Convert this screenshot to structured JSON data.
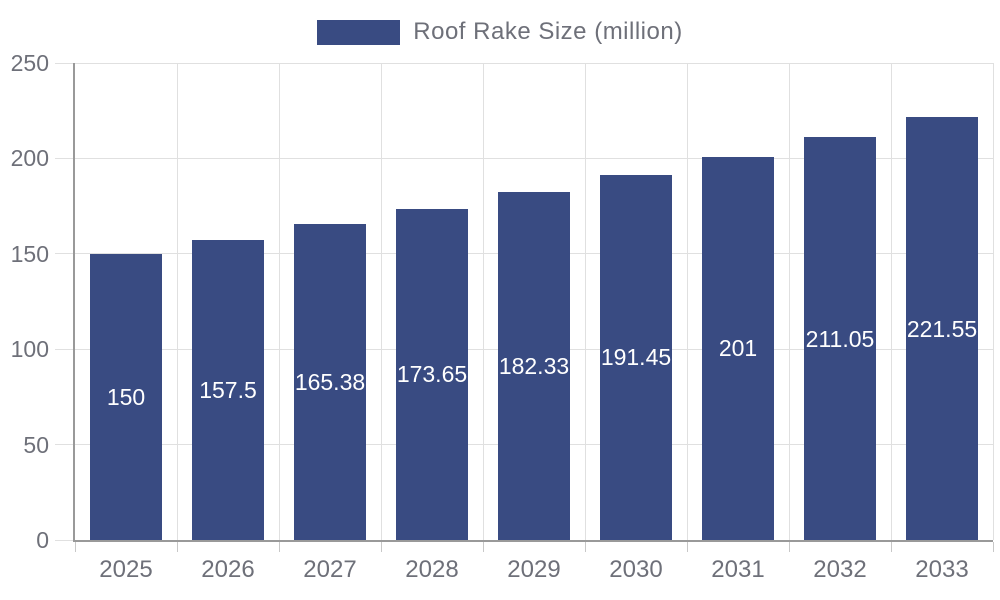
{
  "legend": {
    "label": "Roof Rake Size (million)"
  },
  "chart_data": {
    "type": "bar",
    "title": "Roof Rake Size (million)",
    "categories": [
      "2025",
      "2026",
      "2027",
      "2028",
      "2029",
      "2030",
      "2031",
      "2032",
      "2033"
    ],
    "series": [
      {
        "name": "Roof Rake Size (million)",
        "values": [
          150,
          157.5,
          165.38,
          173.65,
          182.33,
          191.45,
          201,
          211.05,
          221.55
        ],
        "labels": [
          "150",
          "157.5",
          "165.38",
          "173.65",
          "182.33",
          "191.45",
          "201",
          "211.05",
          "221.55"
        ]
      }
    ],
    "xlabel": "",
    "ylabel": "",
    "ylim": [
      0,
      250
    ],
    "yticks": [
      0,
      50,
      100,
      150,
      200,
      250
    ],
    "grid": true,
    "legend_position": "top-center",
    "colors": {
      "bar": "#394B82",
      "bar_label": "#ffffff",
      "axis_text": "#6E7079",
      "grid_line": "#E0E0E0",
      "axis_line": "#999999",
      "tick_line": "#C8C8C8",
      "background": "#ffffff"
    }
  }
}
